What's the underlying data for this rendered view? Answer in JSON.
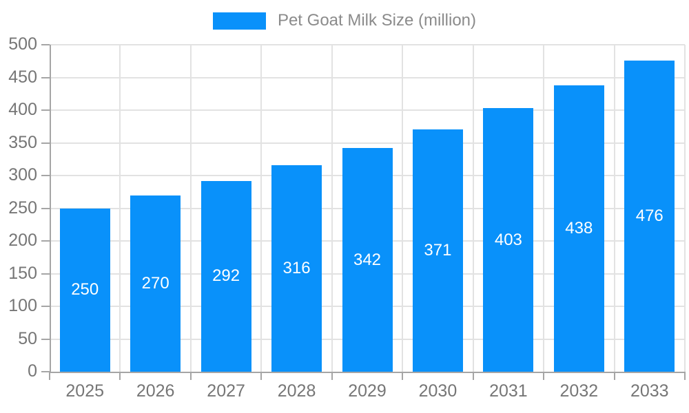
{
  "colors": {
    "bar": "#0991fa",
    "grid": "#e2e2e2",
    "axis": "#a5a5a5",
    "tick_label": "#767676",
    "legend_text": "#8b8b8b",
    "bar_label": "#ffffff",
    "background": "#ffffff"
  },
  "chart_data": {
    "type": "bar",
    "title": "",
    "categories": [
      "2025",
      "2026",
      "2027",
      "2028",
      "2029",
      "2030",
      "2031",
      "2032",
      "2033"
    ],
    "series": [
      {
        "name": "Pet Goat Milk Size (million)",
        "values": [
          250,
          270,
          292,
          316,
          342,
          371,
          403,
          438,
          476
        ]
      }
    ],
    "bar_value_labels": [
      "250",
      "270",
      "292",
      "316",
      "342",
      "371",
      "403",
      "438",
      "476"
    ],
    "xlabel": "",
    "ylabel": "",
    "ylim": [
      0,
      500
    ],
    "yticks": [
      0,
      50,
      100,
      150,
      200,
      250,
      300,
      350,
      400,
      450,
      500
    ],
    "grid": true,
    "legend_position": "top-center"
  }
}
